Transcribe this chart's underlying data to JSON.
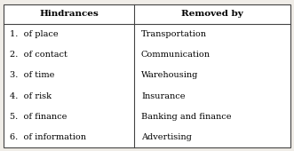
{
  "col1_header": "Hindrances",
  "col2_header": "Removed by",
  "rows": [
    [
      "1.  of place",
      "Transportation"
    ],
    [
      "2.  of contact",
      "Communication"
    ],
    [
      "3.  of time",
      "Warehousing"
    ],
    [
      "4.  of risk",
      "Insurance"
    ],
    [
      "5.  of finance",
      "Banking and finance"
    ],
    [
      "6.  of information",
      "Advertising"
    ]
  ],
  "bg_color": "#f0ede8",
  "border_color": "#444444",
  "text_color": "#000000",
  "header_fontsize": 7.5,
  "body_fontsize": 7.0,
  "fig_width": 3.31,
  "fig_height": 1.7,
  "col_div": 0.455
}
